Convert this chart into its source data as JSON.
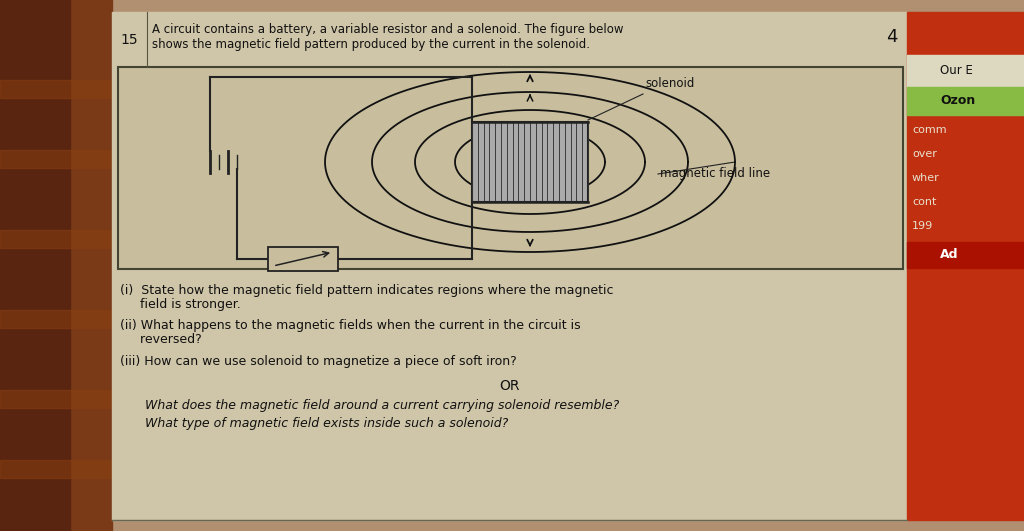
{
  "bg_left_color": "#8B4513",
  "bg_main_color": "#c8b89a",
  "paper_color": "#d8cdb0",
  "diagram_bg": "#cfc5aa",
  "line_color": "#1a1a1a",
  "text_color": "#1a1a1a",
  "sidebar_color": "#cc3311",
  "sidebar_green": "#66aa44",
  "sidebar_red2": "#cc0000",
  "page_num": "4",
  "q_num": "15",
  "q_text_line1": "A circuit contains a battery, a variable resistor and a solenoid. The figure below",
  "q_text_line2": "shows the magnetic field pattern produced by the current in the solenoid.",
  "label_solenoid": "solenoid",
  "label_field": "magnetic field line",
  "qi": "(i)  State how the magnetic field pattern indicates regions where the magnetic",
  "qi2": "     field is stronger.",
  "qii": "(ii) What happens to the magnetic fields when the current in the circuit is",
  "qii2": "     reversed?",
  "qiii": "(iii) How can we use solenoid to magnetize a piece of soft iron?",
  "or_text": "OR",
  "alt1": "What does the magnetic field around a current carrying solenoid resemble?",
  "alt2": "What type of magnetic field exists inside such a solenoid?",
  "sidebar_items": [
    "Our E",
    "Ozon",
    "comm",
    "over",
    "wher",
    "cont",
    "199",
    "Ad"
  ]
}
